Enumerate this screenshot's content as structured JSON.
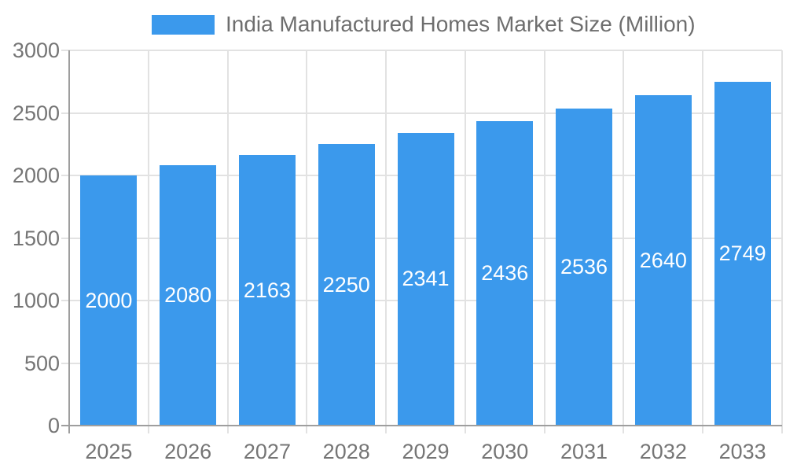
{
  "chart_data": {
    "type": "bar",
    "title": "India Manufactured Homes Market Size (Million)",
    "categories": [
      "2025",
      "2026",
      "2027",
      "2028",
      "2029",
      "2030",
      "2031",
      "2032",
      "2033"
    ],
    "values": [
      2000,
      2080,
      2163,
      2250,
      2341,
      2436,
      2536,
      2640,
      2749
    ],
    "series_name": "India Manufactured Homes Market Size (Million)",
    "xlabel": "",
    "ylabel": "",
    "ylim": [
      0,
      3000
    ],
    "y_ticks": [
      0,
      500,
      1000,
      1500,
      2000,
      2500,
      3000
    ],
    "grid": true,
    "legend_position": "top",
    "bar_value_labels_inside": true,
    "colors": {
      "bar": "#3b99ec",
      "bar_label": "#ffffff",
      "axis_text": "#757575",
      "legend_text": "#6e6e6e",
      "grid_line": "#e2e2e2",
      "axis_line": "#9e9e9e",
      "background": "#ffffff"
    }
  }
}
